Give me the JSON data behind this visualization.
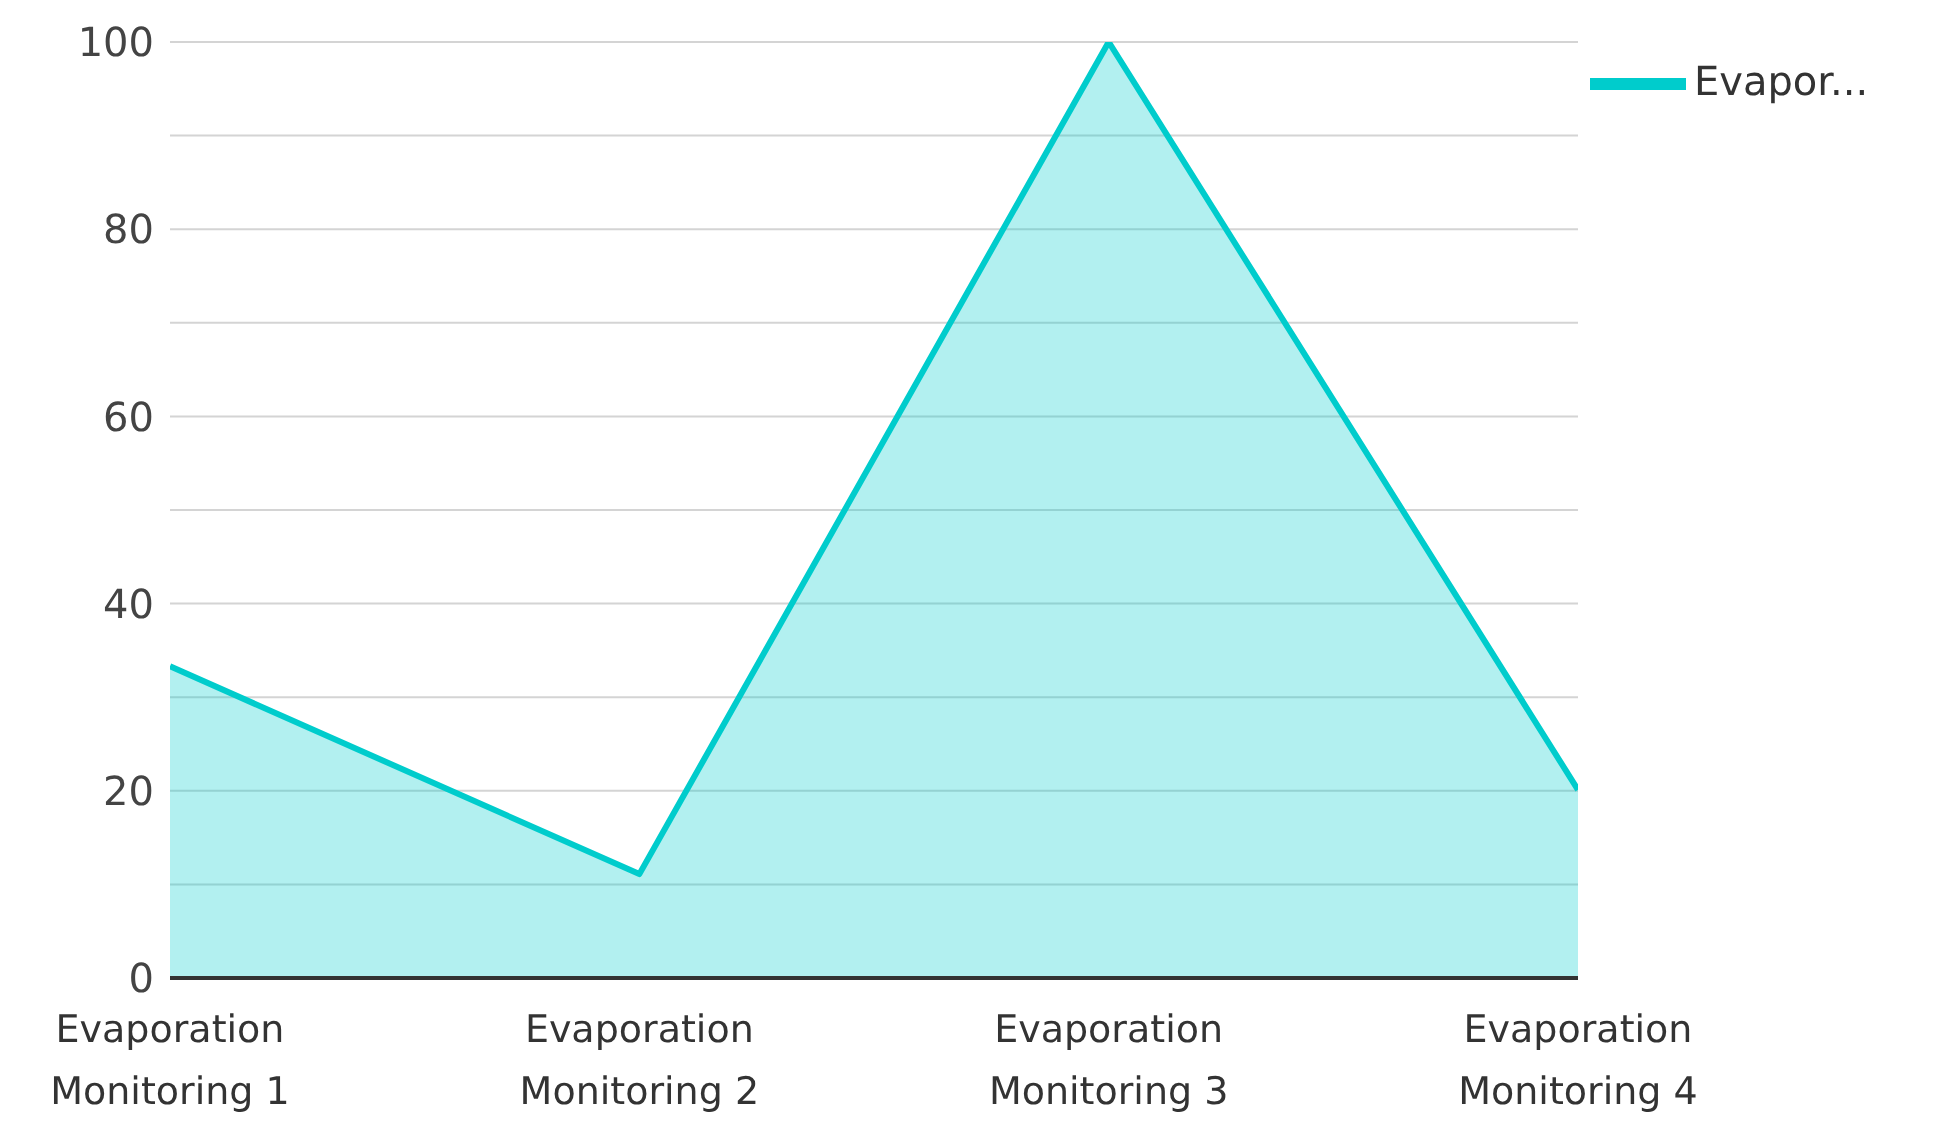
{
  "chart_data": {
    "type": "area",
    "categories": [
      "Evaporation Monitoring 1",
      "Evaporation Monitoring 2",
      "Evaporation Monitoring 3",
      "Evaporation Monitoring 4"
    ],
    "series": [
      {
        "name": "Evapor...",
        "color": "#00cccc",
        "values": [
          33.3,
          11.1,
          100,
          20.1
        ]
      }
    ],
    "ylim": [
      0,
      100
    ],
    "yticks": [
      0,
      {
        "value": 10,
        "label": null
      },
      20,
      {
        "value": 30,
        "label": null
      },
      40,
      {
        "value": 50,
        "label": null
      },
      60,
      {
        "value": 70,
        "label": null
      },
      80,
      {
        "value": 90,
        "label": null
      },
      100
    ],
    "grid": "y",
    "legend": "top right"
  }
}
